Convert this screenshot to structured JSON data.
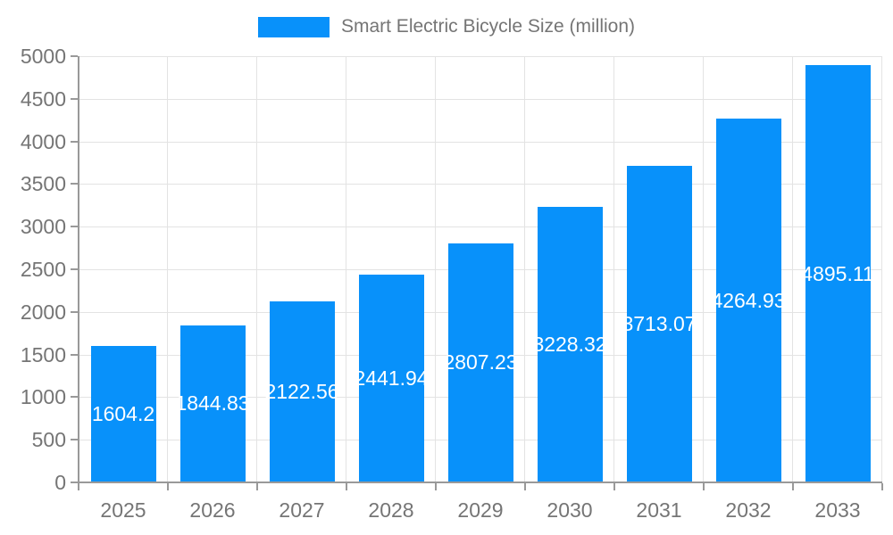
{
  "legend": {
    "label": "Smart Electric Bicycle Size (million)"
  },
  "colors": {
    "bar": "#0891fa",
    "axis": "#999999",
    "grid": "#e3e3e3",
    "tick_text": "#757575",
    "value_label": "#ffffff",
    "background": "#ffffff"
  },
  "chart_data": {
    "type": "bar",
    "title": "Smart Electric Bicycle Size (million)",
    "categories": [
      "2025",
      "2026",
      "2027",
      "2028",
      "2029",
      "2030",
      "2031",
      "2032",
      "2033"
    ],
    "values": [
      1604.2,
      1844.83,
      2122.56,
      2441.94,
      2807.23,
      3228.32,
      3713.07,
      4264.93,
      4895.11
    ],
    "value_labels": [
      "1604.2",
      "1844.83",
      "2122.56",
      "2441.94",
      "2807.23",
      "3228.32",
      "3713.07",
      "4264.93",
      "4895.11"
    ],
    "series_name": "Smart Electric Bicycle Size (million)",
    "xlabel": "",
    "ylabel": "",
    "ylim": [
      0,
      5000
    ],
    "y_ticks": [
      0,
      500,
      1000,
      1500,
      2000,
      2500,
      3000,
      3500,
      4000,
      4500,
      5000
    ],
    "grid": true,
    "legend_position": "top"
  }
}
